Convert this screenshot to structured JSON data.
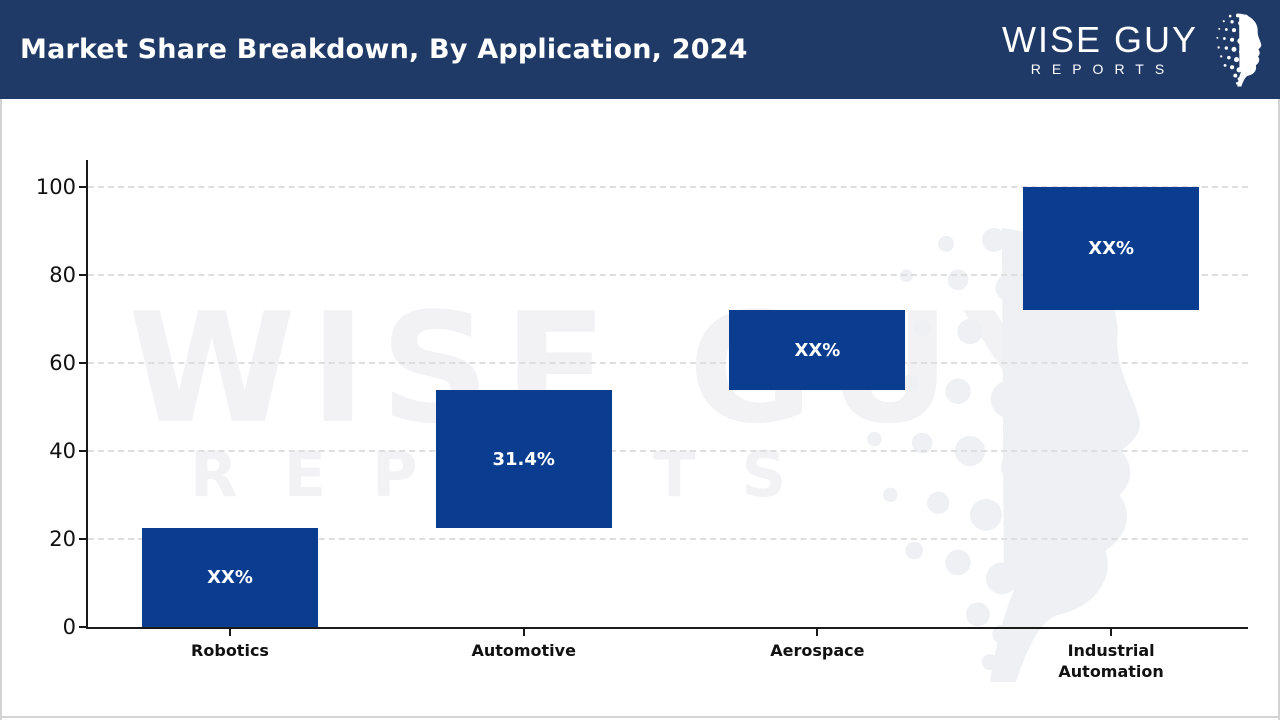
{
  "header": {
    "title": "Market Share Breakdown, By Application, 2024",
    "brand": {
      "wordmark": "WISE GUY",
      "subword": "REPORTS"
    }
  },
  "watermark": {
    "line1": "WISE GUY",
    "line2": "REPORTS"
  },
  "colors": {
    "header_bg": "#203a68",
    "bar": "#0a3d90",
    "bar_label": "#ffffff",
    "gridline": "#dedede",
    "axis": "#1a1a1a",
    "watermark": "#f2f2f5"
  },
  "chart_data": {
    "type": "bar",
    "subtype": "floating-waterfall",
    "title": "Market Share Breakdown, By Application, 2024",
    "categories": [
      "Robotics",
      "Automotive",
      "Aerospace",
      "Industrial Automation"
    ],
    "segments": [
      {
        "category": "Robotics",
        "start": 0,
        "end": 22.4,
        "label": "XX%"
      },
      {
        "category": "Automotive",
        "start": 22.4,
        "end": 53.8,
        "label": "31.4%"
      },
      {
        "category": "Aerospace",
        "start": 53.8,
        "end": 71.9,
        "label": "XX%"
      },
      {
        "category": "Industrial Automation",
        "start": 71.9,
        "end": 99.8,
        "label": "XX%"
      }
    ],
    "xlabel": "",
    "ylabel": "",
    "ylim": [
      0,
      106
    ],
    "yticks": [
      0,
      20,
      40,
      60,
      80,
      100
    ],
    "grid": "horizontal-dashed",
    "legend": "none",
    "bar_color": "#0a3d90",
    "value_label_color": "#ffffff"
  }
}
